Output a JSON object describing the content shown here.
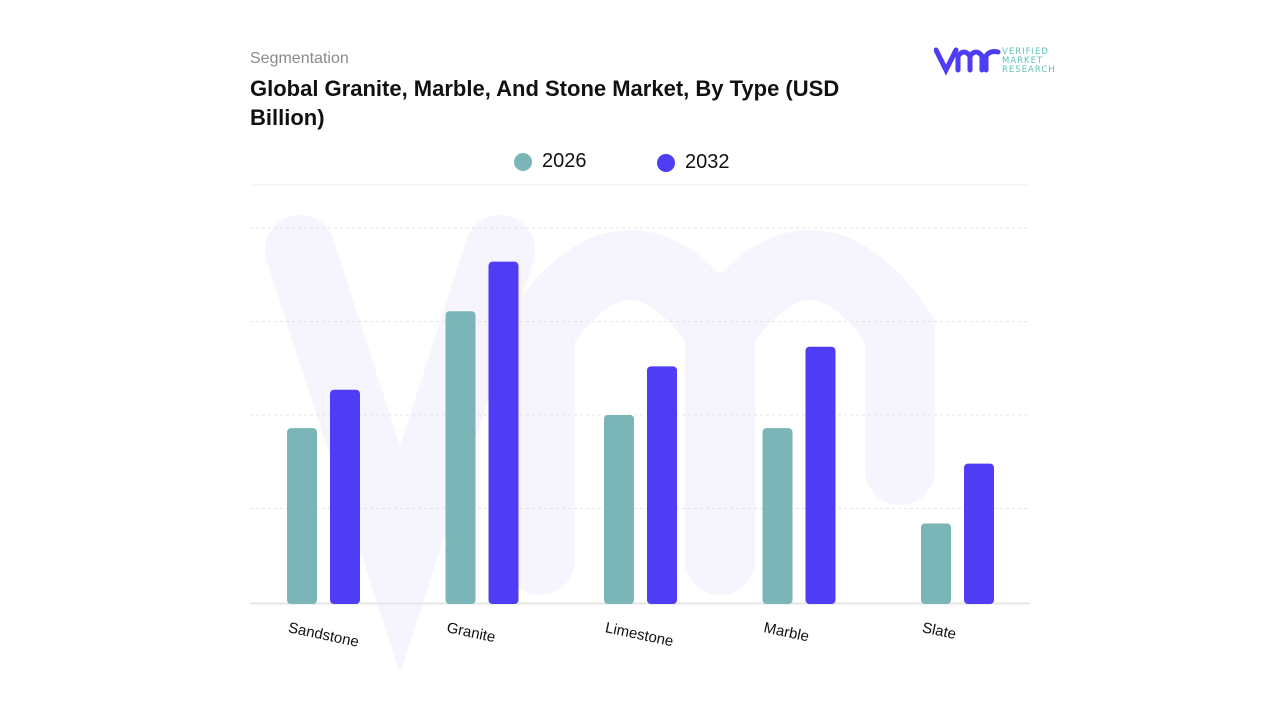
{
  "header": {
    "subtitle": "Segmentation",
    "title": "Global Granite, Marble, And Stone Market, By Type (USD Billion)",
    "logo_text": [
      "VERIFIED",
      "MARKET",
      "RESEARCH"
    ]
  },
  "colors": {
    "2026": "#7ab5b8",
    "2032": "#4f3cf5",
    "brand": "#4f3cf5",
    "brand_text": "#5fc3b8"
  },
  "chart_data": {
    "type": "bar",
    "title": "Global Granite, Marble, And Stone Market, By Type (USD Billion)",
    "categories": [
      "Sandstone",
      "Granite",
      "Limestone",
      "Marble",
      "Slate"
    ],
    "series": [
      {
        "name": "2026",
        "values": [
          1.86,
          3.11,
          2.0,
          1.86,
          0.84
        ],
        "color": "#7ab5b8"
      },
      {
        "name": "2032",
        "values": [
          2.27,
          3.64,
          2.52,
          2.73,
          1.48
        ],
        "color": "#4f3cf5"
      }
    ],
    "ylim": [
      0,
      4
    ],
    "y_ticks_labeled": false,
    "grid": true,
    "legend": "top-center",
    "xlabel": "",
    "ylabel": ""
  }
}
